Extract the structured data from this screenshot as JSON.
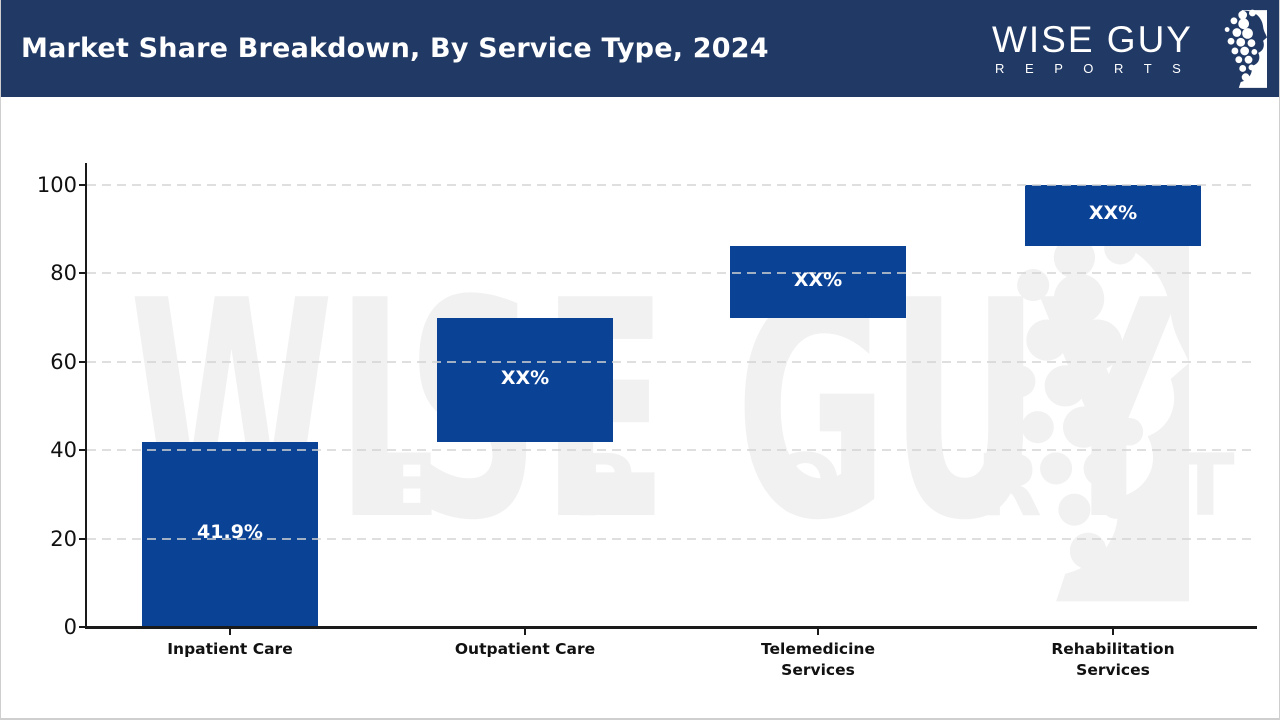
{
  "header": {
    "title": "Market Share Breakdown, By Service Type, 2024",
    "logo": {
      "line1": "WISE GUY",
      "line2": "R E P O R T S"
    }
  },
  "watermark": {
    "line1": "WISE GUY",
    "line2": "R E P O R T S"
  },
  "colors": {
    "header_bg": "#213965",
    "bar": "#0a4296",
    "grid": "#d4d4d4",
    "axis": "#1a1a1a",
    "watermark": "#f1f1f1",
    "bar_label_text": "#ffffff"
  },
  "chart_data": {
    "type": "bar",
    "subtype": "waterfall",
    "title": "Market Share Breakdown, By Service Type, 2024",
    "xlabel": "",
    "ylabel": "",
    "ylim": [
      0,
      105
    ],
    "yticks": [
      0,
      20,
      40,
      60,
      80,
      100
    ],
    "grid": "dashed-horizontal-over-bars",
    "legend": "none",
    "categories": [
      "Inpatient Care",
      "Outpatient Care",
      "Telemedicine Services",
      "Rehabilitation Services"
    ],
    "category_lines": [
      [
        "Inpatient Care"
      ],
      [
        "Outpatient Care"
      ],
      [
        "Telemedicine",
        "Services"
      ],
      [
        "Rehabilitation",
        "Services"
      ]
    ],
    "segments": [
      {
        "category": "Inpatient Care",
        "start": 0,
        "end": 41.9,
        "value": 41.9,
        "label": "41.9%"
      },
      {
        "category": "Outpatient Care",
        "start": 41.9,
        "end": 70.0,
        "value": 28.1,
        "label": "XX%"
      },
      {
        "category": "Telemedicine Services",
        "start": 70.0,
        "end": 86.3,
        "value": 16.3,
        "label": "XX%"
      },
      {
        "category": "Rehabilitation Services",
        "start": 86.3,
        "end": 100.0,
        "value": 13.7,
        "label": "XX%"
      }
    ]
  }
}
